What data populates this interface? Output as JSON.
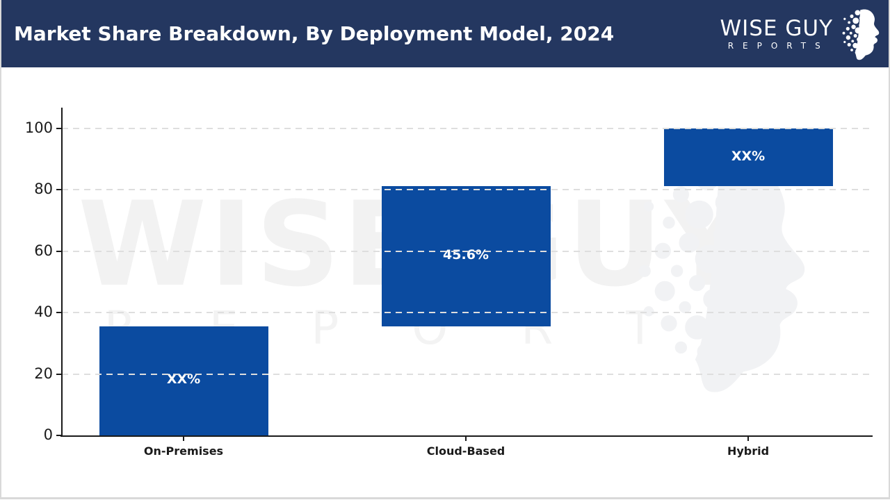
{
  "header": {
    "title": "Market Share Breakdown, By Deployment Model, 2024",
    "logo": {
      "line1": "WISE GUY",
      "line2": "REPORTS"
    }
  },
  "watermark": {
    "line1": "WISE GUY",
    "line2": "R E P O R T S"
  },
  "colors": {
    "header_bg": "#243760",
    "bar": "#0b4ba0",
    "bar_label": "#ffffff",
    "grid": "#dedede",
    "axis": "#1a1a1a",
    "watermark": "#f2f2f2"
  },
  "chart_data": {
    "type": "bar",
    "subtype": "waterfall-stacked-percent",
    "title": "Market Share Breakdown, By Deployment Model, 2024",
    "categories": [
      "On-Premises",
      "Cloud-Based",
      "Hybrid"
    ],
    "segments": [
      {
        "category": "On-Premises",
        "start": 0,
        "end": 35.6,
        "value_label": "XX%"
      },
      {
        "category": "Cloud-Based",
        "start": 35.6,
        "end": 81.2,
        "value_label": "45.6%"
      },
      {
        "category": "Hybrid",
        "start": 81.2,
        "end": 100,
        "value_label": "XX%"
      }
    ],
    "xlabel": "",
    "ylabel": "",
    "yticks": [
      0,
      20,
      40,
      60,
      80,
      100
    ],
    "ylim": [
      0,
      107
    ],
    "grid": "horizontal-dashed",
    "legend": "none",
    "bar_color": "#0b4ba0"
  }
}
